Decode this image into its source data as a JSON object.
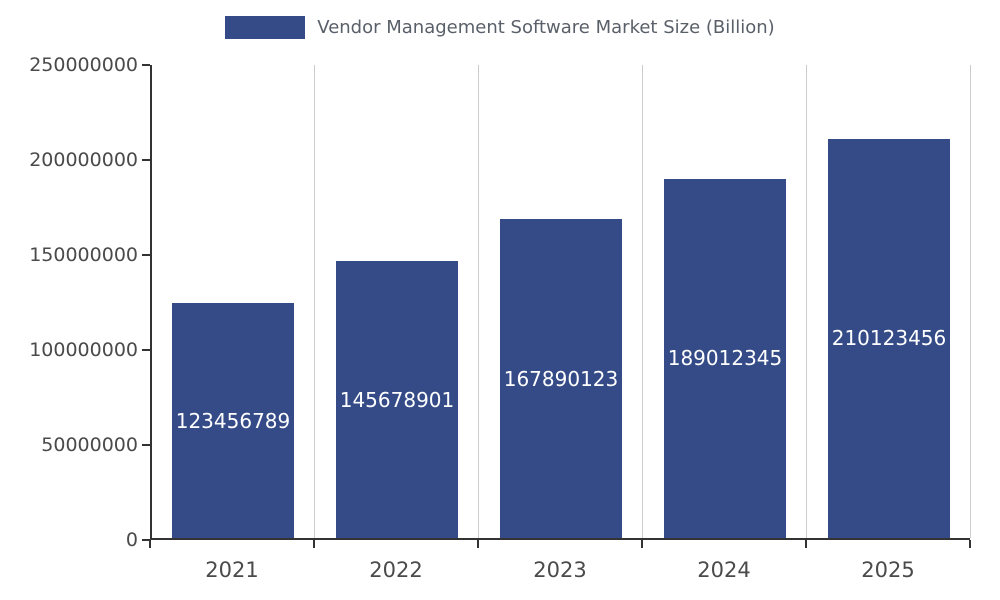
{
  "legend": {
    "label": "Vendor Management Software Market Size (Billion)"
  },
  "colors": {
    "bar": "#344b87",
    "axis_line": "#333333",
    "grid_line": "#cccccc",
    "tick_label": "#4a4a4a",
    "legend_text": "#5a6069",
    "value_label": "#ffffff",
    "background": "#ffffff"
  },
  "chart_data": {
    "type": "bar",
    "title": "Vendor Management Software Market Size (Billion)",
    "categories": [
      "2021",
      "2022",
      "2023",
      "2024",
      "2025"
    ],
    "values": [
      123456789,
      145678901,
      167890123,
      189012345,
      210123456
    ],
    "value_labels": [
      "123456789",
      "145678901",
      "167890123",
      "189012345",
      "210123456"
    ],
    "xlabel": "",
    "ylabel": "",
    "ylim": [
      0,
      250000000
    ],
    "yticks": [
      0,
      50000000,
      100000000,
      150000000,
      200000000,
      250000000
    ],
    "ytick_labels": [
      "0",
      "50000000",
      "100000000",
      "150000000",
      "200000000",
      "250000000"
    ],
    "grid": "vertical-split-lines-only",
    "legend_position": "top-center",
    "value_label_position": "inside-center"
  }
}
